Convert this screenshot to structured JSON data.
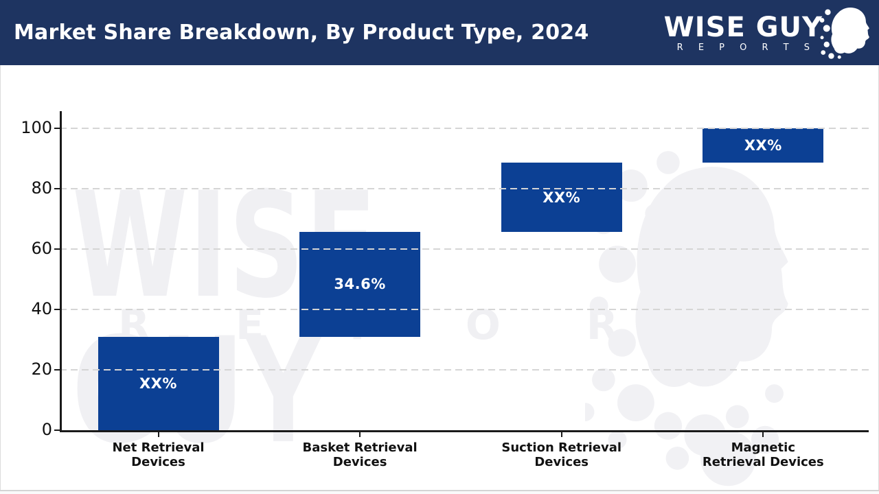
{
  "header": {
    "title": "Market Share Breakdown, By Product Type, 2024",
    "logo_line1": "WISE GUY",
    "logo_line2": "R E P O R T S"
  },
  "watermark": {
    "line1": "WISE GUY",
    "line2": "R E P O R T S"
  },
  "chart_data": {
    "type": "bar",
    "variant": "waterfall",
    "title": "Market Share Breakdown, By Product Type, 2024",
    "categories": [
      "Net Retrieval Devices",
      "Basket Retrieval Devices",
      "Suction Retrieval Devices",
      "Magnetic Retrieval Devices"
    ],
    "series": [
      {
        "name": "Market Share",
        "starts": [
          0,
          31,
          65.6,
          88.6
        ],
        "ends": [
          31,
          65.6,
          88.6,
          100
        ],
        "values": [
          31,
          34.6,
          23,
          11.4
        ],
        "labels": [
          "XX%",
          "34.6%",
          "XX%",
          "XX%"
        ]
      }
    ],
    "xlabel": "",
    "ylabel": "",
    "ylim": [
      0,
      100
    ],
    "yticks": [
      "0",
      "20",
      "40",
      "60",
      "80",
      "100"
    ],
    "grid": "horizontal-dashed",
    "legend_position": "none",
    "bar_color": "#0c4094",
    "bar_label_color": "#ffffff"
  },
  "colors": {
    "header_bg": "#1e3461",
    "accent_blue": "#0c4094",
    "watermark": "#f0f0f3",
    "grid": "#d5d5d5",
    "axis": "#1a1a1a"
  }
}
